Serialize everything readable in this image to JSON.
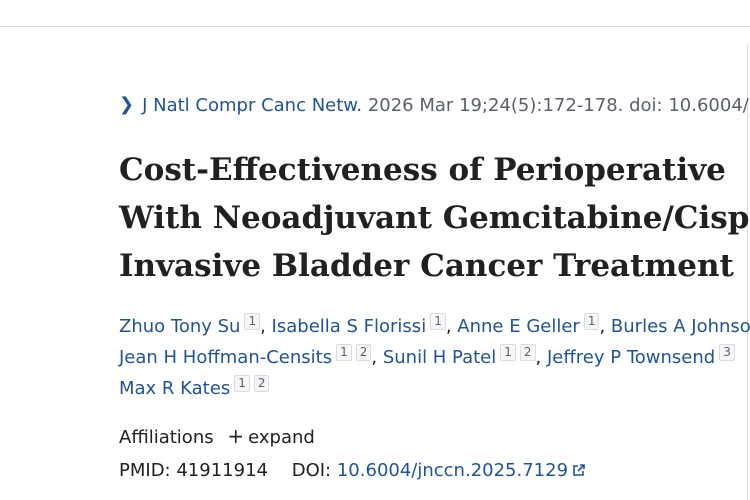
{
  "citation": {
    "chevron_icon": "chevron-right-icon",
    "journal": "J Natl Compr Canc Netw.",
    "details": "2026 Mar 19;24(5):172-178. doi: 10.6004/"
  },
  "article": {
    "title_lines": [
      "Cost-Effectiveness of Perioperative",
      "With Neoadjuvant Gemcitabine/Cisp",
      "Invasive Bladder Cancer Treatment"
    ]
  },
  "authors": [
    {
      "name": "Zhuo Tony Su",
      "affs": [
        "1"
      ]
    },
    {
      "name": "Isabella S Florissi",
      "affs": [
        "1"
      ]
    },
    {
      "name": "Anne E Geller",
      "affs": [
        "1"
      ]
    },
    {
      "name": "Burles A Johnso",
      "affs": []
    },
    {
      "name": "Jean H Hoffman-Censits",
      "affs": [
        "1",
        "2"
      ]
    },
    {
      "name": "Sunil H Patel",
      "affs": [
        "1",
        "2"
      ]
    },
    {
      "name": "Jeffrey P Townsend",
      "affs": [
        "3"
      ]
    },
    {
      "name": "Max R Kates",
      "affs": [
        "1",
        "2"
      ]
    }
  ],
  "affiliations": {
    "label": "Affiliations",
    "expand_label": "expand",
    "expand_icon": "plus-icon"
  },
  "identifiers": {
    "pmid_label": "PMID:",
    "pmid": "41911914",
    "doi_label": "DOI:",
    "doi": "10.6004/jnccn.2025.7129",
    "external_icon": "external-link-icon"
  },
  "colors": {
    "link": "#205493",
    "text": "#212121",
    "muted": "#5b616b",
    "border": "#dcdcdc"
  }
}
